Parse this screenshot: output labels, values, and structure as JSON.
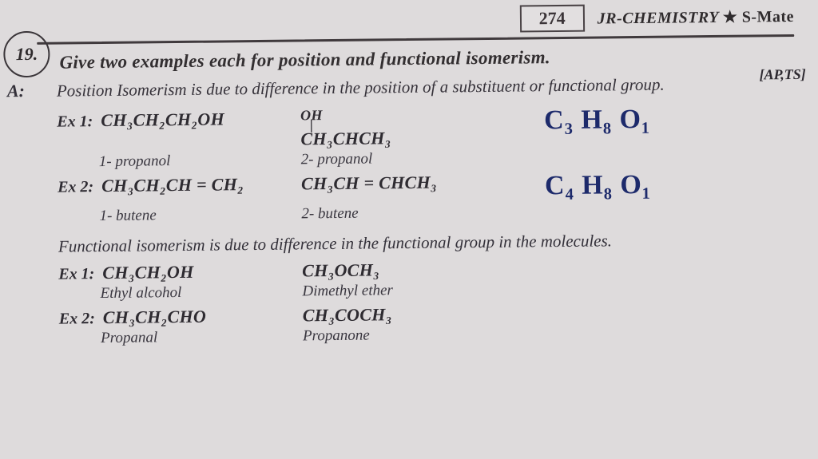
{
  "header": {
    "page_number": "274",
    "brand": "JR-CHEMISTRY",
    "brand_suffix": "★ S-Mate"
  },
  "question": {
    "number": "19.",
    "text": "Give two examples each for position and functional isomerism.",
    "answer_label": "A:",
    "tag": "[AP,TS]"
  },
  "position_section": {
    "intro": "Position Isomerism is due to difference in the position of a substituent or functional group.",
    "ex1_label": "Ex 1:",
    "ex1_left": "CH₃CH₂CH₂OH",
    "ex1_left_name": "1- propanol",
    "ex1_mid_oh": "OH",
    "ex1_mid": "CH₃CHCH₃",
    "ex1_mid_name": "2- propanol",
    "ex1_hand": "C₃ H₈ O₁",
    "ex2_label": "Ex 2:",
    "ex2_left": "CH₃CH₂CH = CH₂",
    "ex2_left_name": "1- butene",
    "ex2_mid": "CH₃CH = CHCH₃",
    "ex2_mid_name": "2- butene",
    "ex2_hand": "C₄ H₈ O₁"
  },
  "functional_section": {
    "intro": "Functional isomerism is due to difference in the functional group in the molecules.",
    "ex1_label": "Ex 1:",
    "ex1_left": "CH₃CH₂OH",
    "ex1_left_name": "Ethyl alcohol",
    "ex1_mid": "CH₃OCH₃",
    "ex1_mid_name": "Dimethyl ether",
    "ex2_label": "Ex 2:",
    "ex2_left": "CH₃CH₂CHO",
    "ex2_left_name": "Propanal",
    "ex2_mid": "CH₃COCH₃",
    "ex2_mid_name": "Propanone"
  },
  "colors": {
    "bg": "#dedbdc",
    "text": "#3a3638",
    "pen": "#1d2a6b"
  }
}
